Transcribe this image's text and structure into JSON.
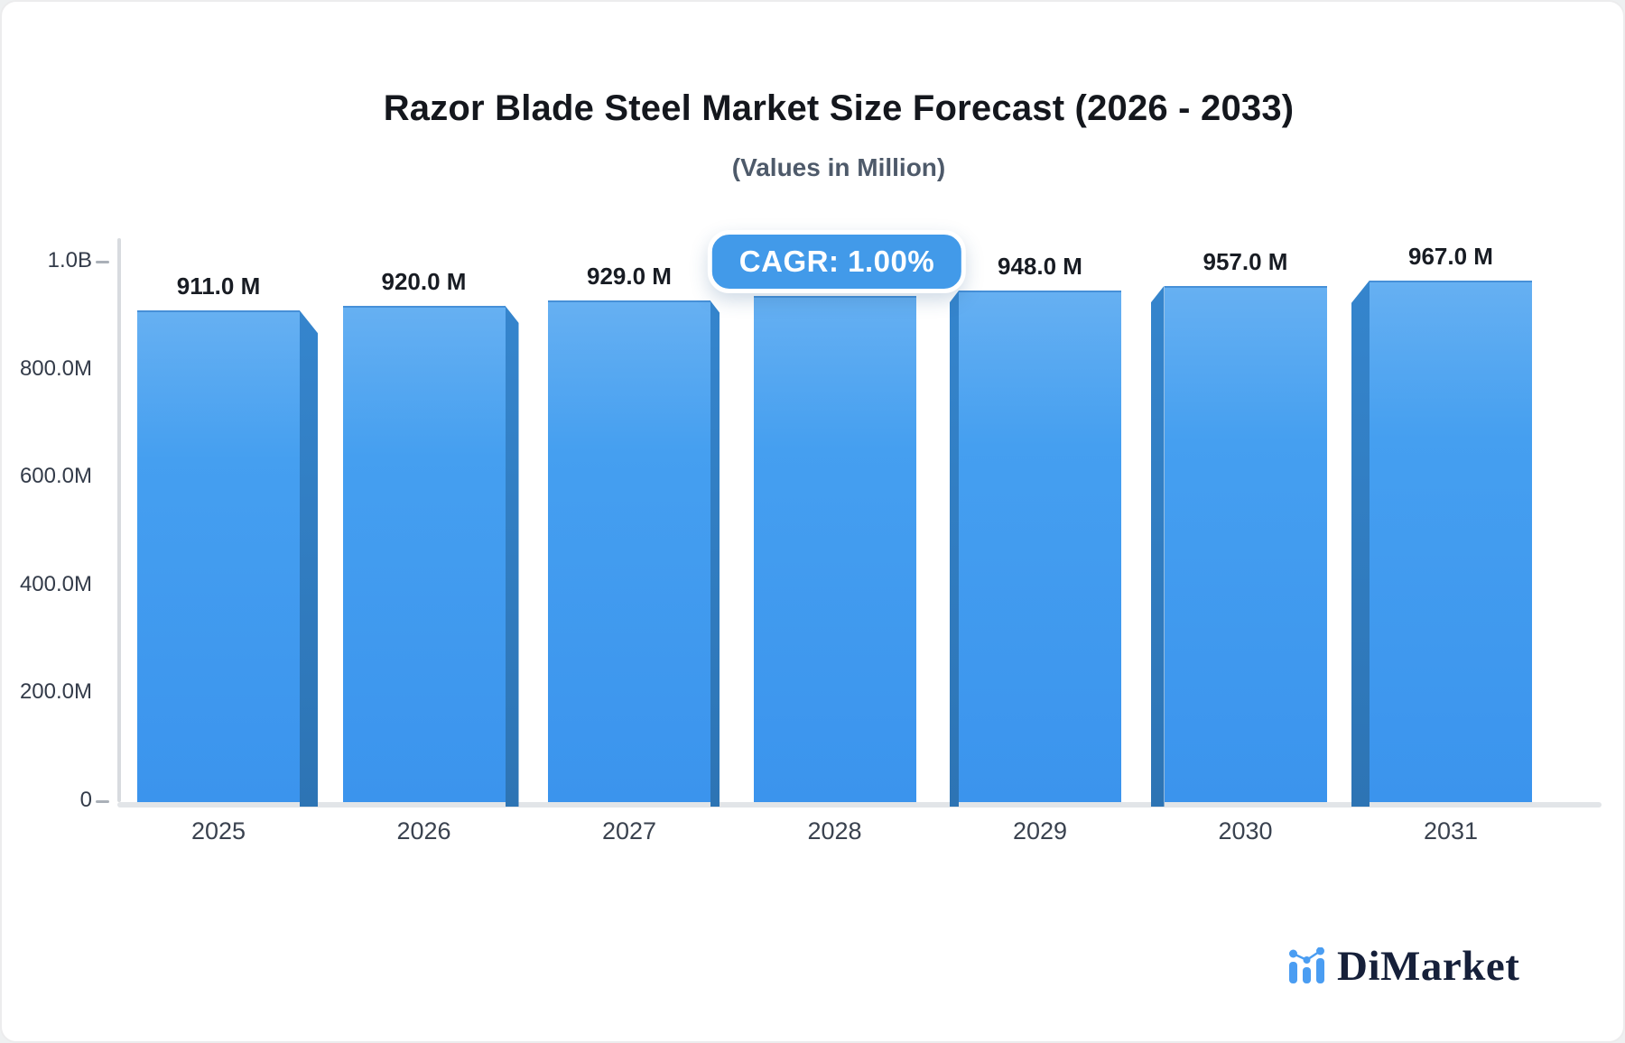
{
  "header": {
    "title": "Razor Blade Steel Market Size Forecast (2026 - 2033)",
    "subtitle": "(Values in Million)"
  },
  "badge": {
    "label": "CAGR: 1.00%"
  },
  "logo": {
    "text": "DiMarket",
    "icon": "mini-bar-line-chart",
    "icon_color": "#4a9df2"
  },
  "chart_data": {
    "type": "bar",
    "title": "Razor Blade Steel Market Size Forecast (2026 - 2033)",
    "subtitle": "(Values in Million)",
    "unit": "Million",
    "cagr_percent": 1.0,
    "categories": [
      "2025",
      "2026",
      "2027",
      "2028",
      "2029",
      "2030",
      "2031"
    ],
    "values": [
      911,
      920,
      929,
      938,
      948,
      957,
      967
    ],
    "bar_labels": [
      "911.0 M",
      "920.0 M",
      "929.0 M",
      "",
      "948.0 M",
      "957.0 M",
      "967.0 M"
    ],
    "y_axis": {
      "ylim": [
        0,
        1000
      ],
      "ticks": [
        {
          "label": "1.0B",
          "value": 1000,
          "tick_mark": true
        },
        {
          "label": "800.0M",
          "value": 800,
          "tick_mark": false
        },
        {
          "label": "600.0M",
          "value": 600,
          "tick_mark": false
        },
        {
          "label": "400.0M",
          "value": 400,
          "tick_mark": false
        },
        {
          "label": "200.0M",
          "value": 200,
          "tick_mark": false
        },
        {
          "label": "0",
          "value": 0,
          "tick_mark": true
        }
      ]
    },
    "grid": false,
    "legend": false,
    "colors": {
      "bar_top": "#66b0f2",
      "bar_bottom": "#3b94ed",
      "bar_side": "#2f7cc2",
      "badge_bg": "#429ae9",
      "axis_line": "#d8dbdf",
      "baseline_band": "#e2e5e8"
    }
  }
}
